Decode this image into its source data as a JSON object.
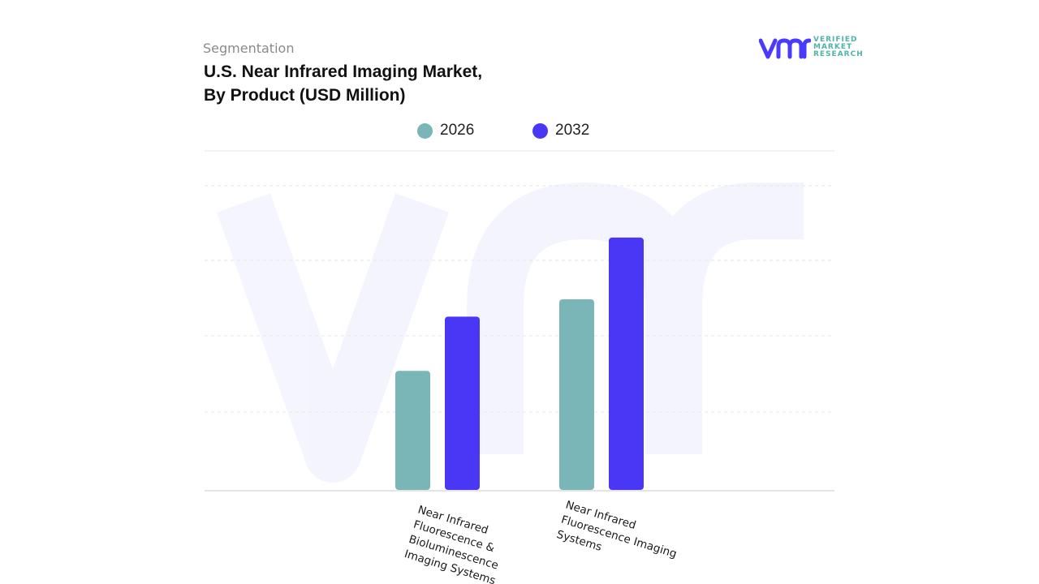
{
  "header": {
    "eyebrow": "Segmentation",
    "title_line1": "U.S. Near Infrared Imaging Market,",
    "title_line2": "By Product (USD Million)"
  },
  "logo": {
    "mark": "vmr-logo",
    "line1": "VERIFIED",
    "line2": "MARKET",
    "line3": "RESEARCH",
    "brand_color": "#4a3aff",
    "text_color": "#4fb3a9"
  },
  "chart_data": {
    "type": "bar",
    "title": "U.S. Near Infrared Imaging Market, By Product (USD Million)",
    "categories": [
      [
        "Near Infrared",
        "Fluorescence &",
        "Bioluminescence",
        "Imaging Systems"
      ],
      [
        "Near Infrared",
        "Fluorescence Imaging",
        "Systems"
      ]
    ],
    "category_names": [
      "Near Infrared Fluorescence & Bioluminescence Imaging Systems",
      "Near Infrared Fluorescence Imaging Systems"
    ],
    "series": [
      {
        "name": "2026",
        "color": "#7ab5b8",
        "values": [
          1.58,
          2.53
        ]
      },
      {
        "name": "2032",
        "color": "#4a36f5",
        "values": [
          2.3,
          3.35
        ]
      }
    ],
    "ylim": [
      0,
      4.5
    ],
    "grid": true,
    "legend_position": "top-center",
    "xlabel": "",
    "ylabel": ""
  }
}
